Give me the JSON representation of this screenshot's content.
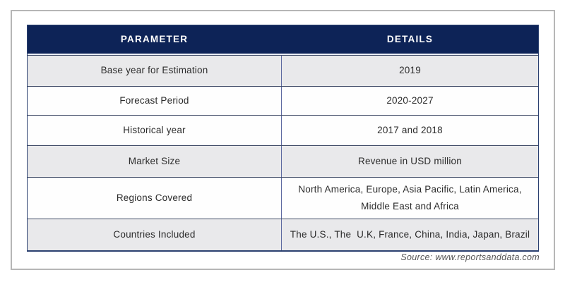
{
  "table": {
    "headers": {
      "parameter": "PARAMETER",
      "details": "DETAILS"
    },
    "rows": [
      {
        "parameter": "Base year for Estimation",
        "details": "2019",
        "shaded": true
      },
      {
        "parameter": "Forecast Period",
        "details": "2020-2027",
        "shaded": false
      },
      {
        "parameter": "Historical year",
        "details": "2017 and 2018",
        "shaded": false
      },
      {
        "parameter": "Market Size",
        "details": "Revenue in USD million",
        "shaded": true
      },
      {
        "parameter": "Regions Covered",
        "details": "North America, Europe, Asia Pacific, Latin America, Middle East and Africa",
        "shaded": false
      },
      {
        "parameter": "Countries Included",
        "details": "The U.S., The  U.K, France, China, India, Japan, Brazil",
        "shaded": true
      }
    ]
  },
  "source": "Source: www.reportsanddata.com",
  "colors": {
    "header_bg": "#0d2357",
    "header_text": "#ffffff",
    "shaded_row_bg": "#e9e9eb",
    "plain_row_bg": "#fefefe",
    "table_border": "#2b4070",
    "row_divider": "#3f4a66",
    "column_divider": "#5d6aa0",
    "frame_border": "#b6b6b6",
    "source_text": "#555555"
  }
}
